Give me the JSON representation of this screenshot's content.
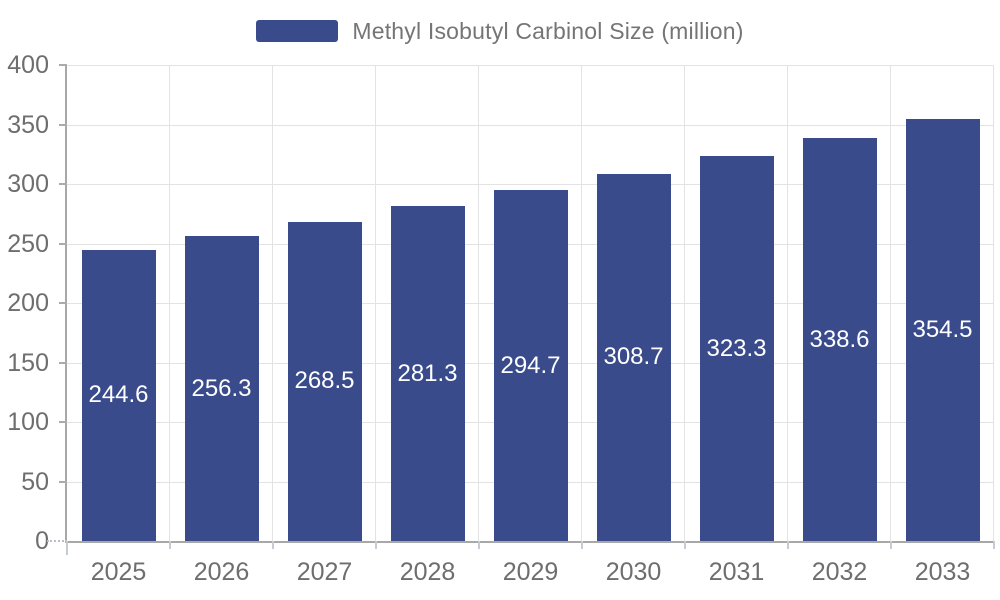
{
  "chart_data": {
    "type": "bar",
    "title": "Methyl Isobutyl Carbinol Size (million)",
    "legend": [
      {
        "label": "Methyl Isobutyl Carbinol Size (million)",
        "color": "#3a4b8c"
      }
    ],
    "legend_position": "top",
    "categories": [
      "2025",
      "2026",
      "2027",
      "2028",
      "2029",
      "2030",
      "2031",
      "2032",
      "2033"
    ],
    "values": [
      244.6,
      256.3,
      268.5,
      281.3,
      294.7,
      308.7,
      323.3,
      338.6,
      354.5
    ],
    "value_labels": [
      "244.6",
      "256.3",
      "268.5",
      "281.3",
      "294.7",
      "308.7",
      "323.3",
      "338.6",
      "354.5"
    ],
    "xlabel": "",
    "ylabel": "",
    "ylim": [
      0,
      400
    ],
    "yticks": [
      0,
      50,
      100,
      150,
      200,
      250,
      300,
      350,
      400
    ],
    "ytick_labels": [
      "0",
      "50",
      "100",
      "150",
      "200",
      "250",
      "300",
      "350",
      "400"
    ],
    "grid": true,
    "colors": {
      "bar": "#3a4b8c",
      "bar_value_text": "#ffffff",
      "axis_line": "#a8a8a8",
      "gridline": "#e3e3e3",
      "axis_text": "#6e6e6e",
      "legend_text": "#757575"
    }
  }
}
